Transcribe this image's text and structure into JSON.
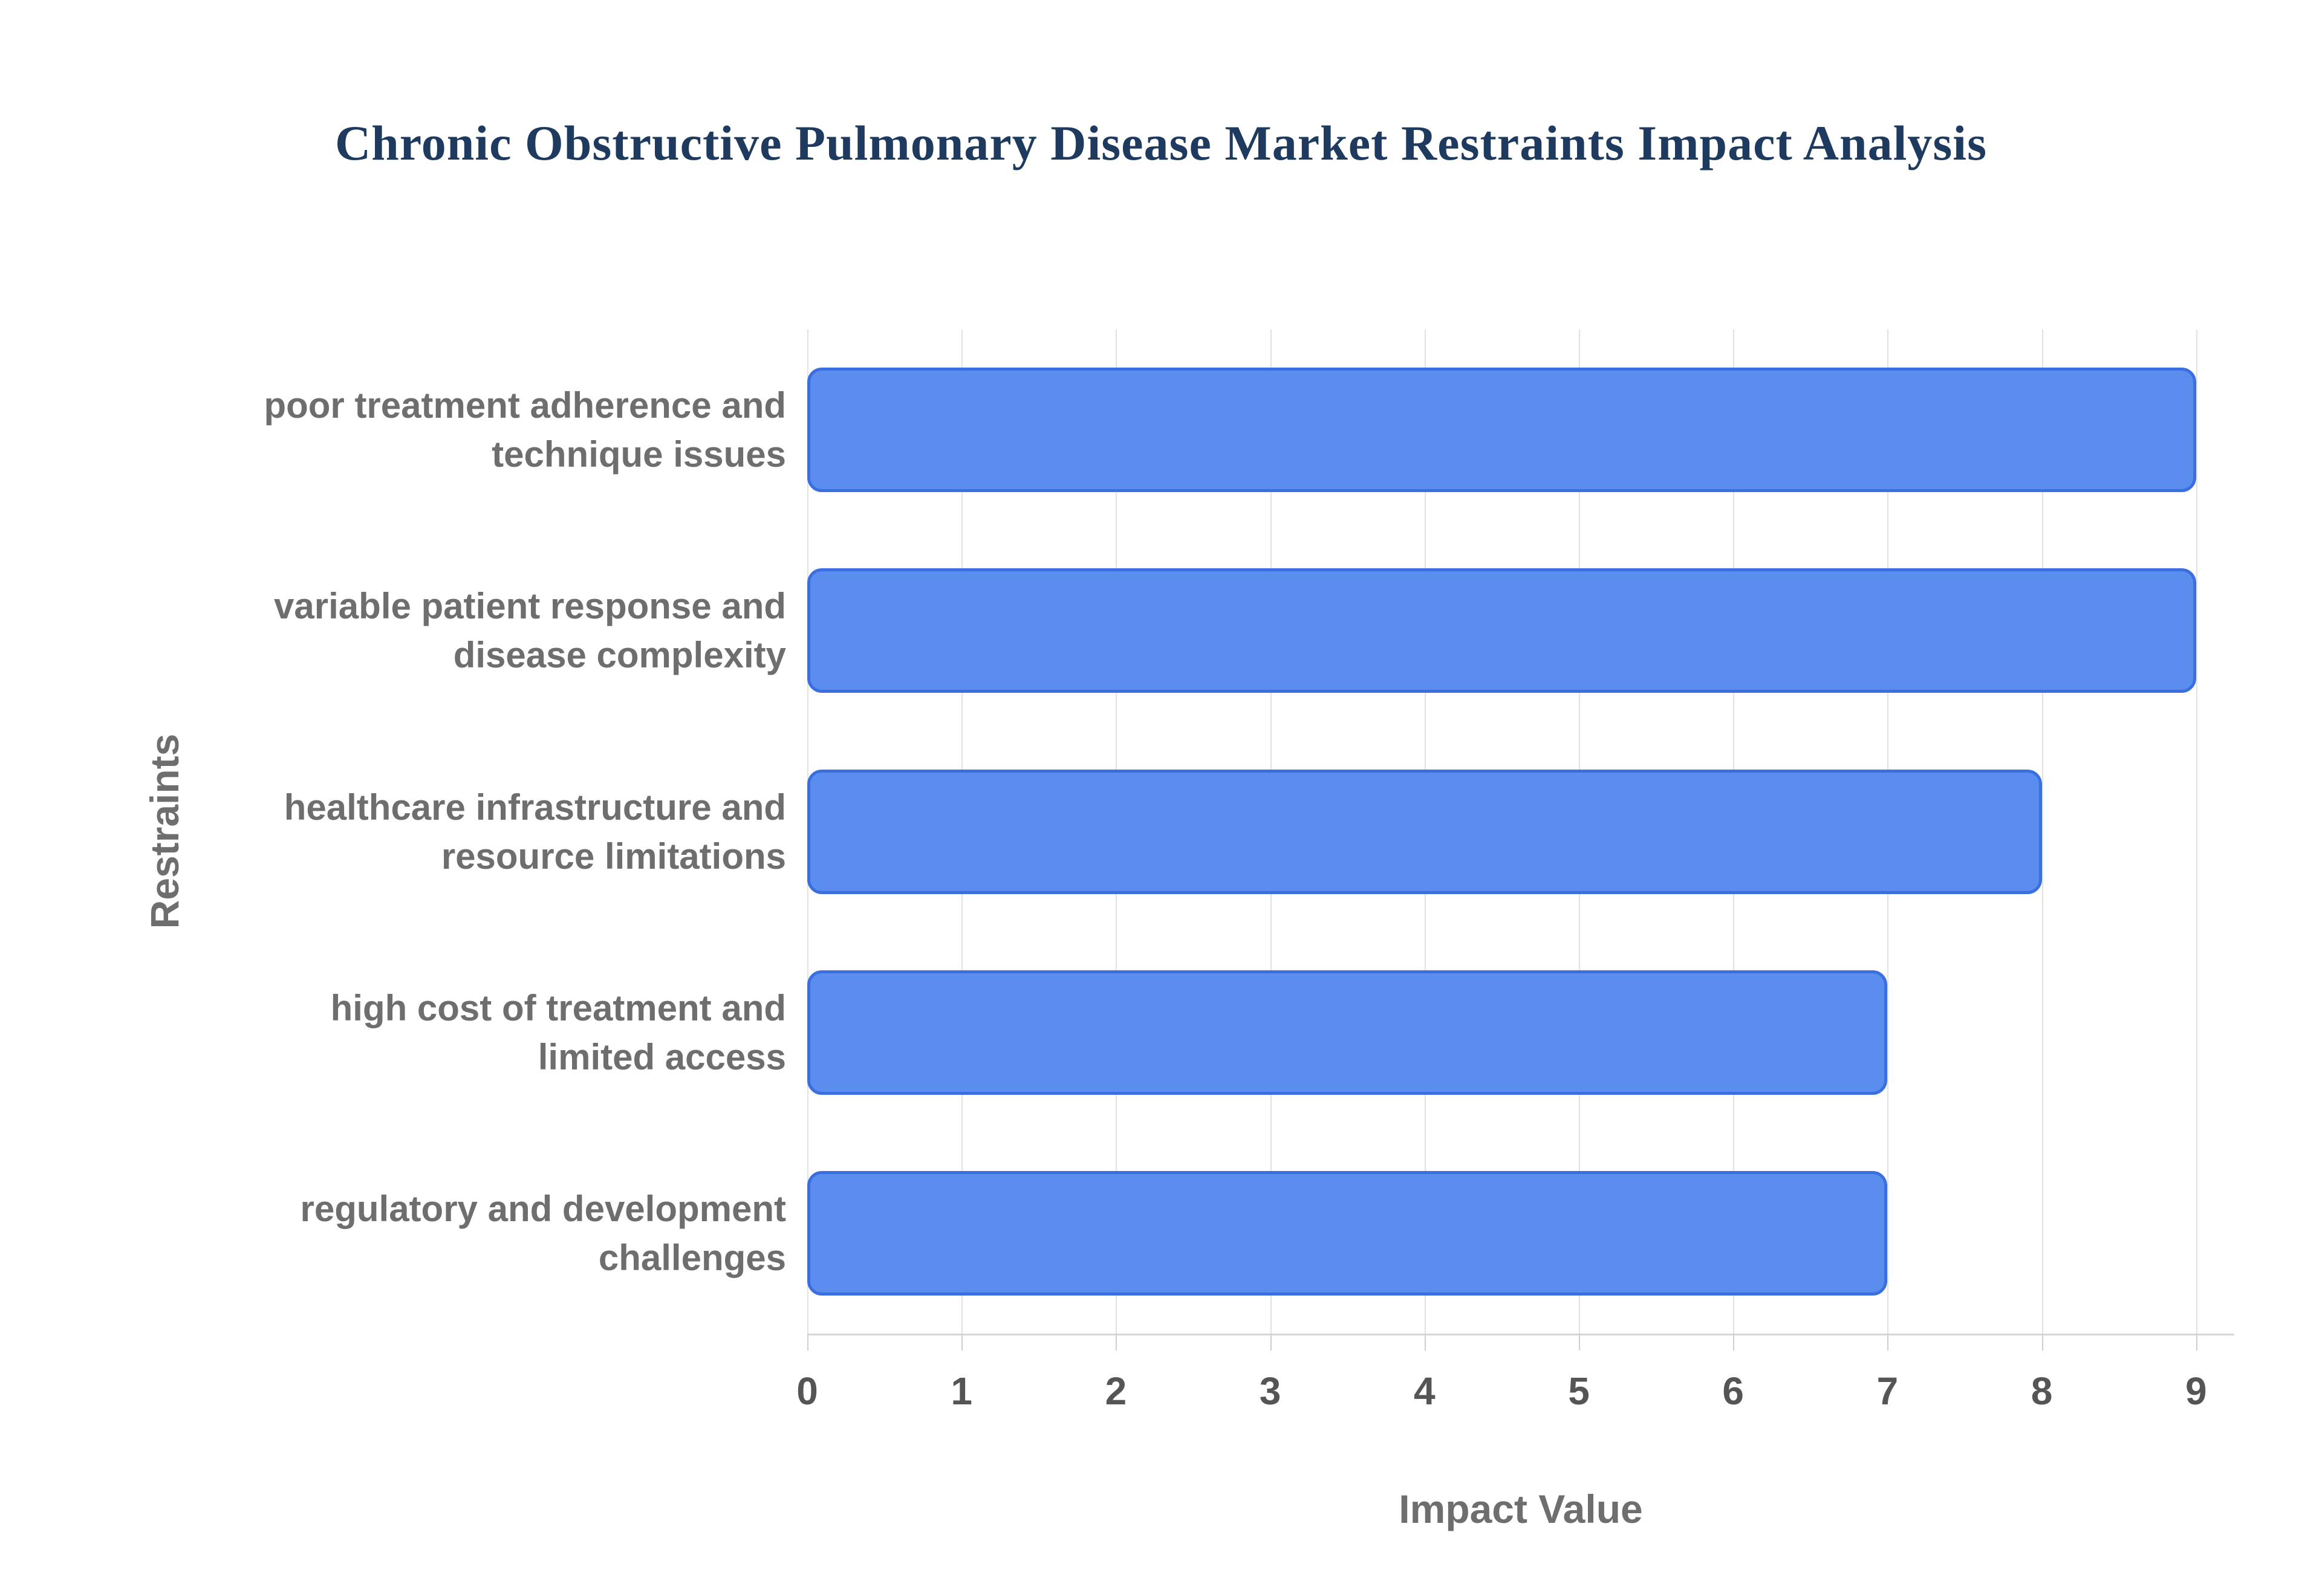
{
  "page": {
    "background": "#ffffff"
  },
  "chart_data": {
    "type": "bar",
    "orientation": "horizontal",
    "title": "Chronic Obstructive Pulmonary Disease Market Restraints Impact Analysis",
    "xlabel": "Impact Value",
    "ylabel": "Restraints",
    "categories": [
      "poor treatment adherence and technique issues",
      "variable patient response and disease complexity",
      "healthcare infrastructure and resource limitations",
      "high cost of treatment and limited access",
      "regulatory and development challenges"
    ],
    "category_lines": [
      [
        "poor treatment adherence and",
        "technique issues"
      ],
      [
        "variable patient response and",
        "disease complexity"
      ],
      [
        "healthcare infrastructure and",
        "resource limitations"
      ],
      [
        "high cost of treatment and",
        "limited access"
      ],
      [
        "regulatory and development",
        "challenges"
      ]
    ],
    "values": [
      9,
      9,
      8,
      7,
      7
    ],
    "xlim": [
      0,
      9
    ],
    "xticks": [
      0,
      1,
      2,
      3,
      4,
      5,
      6,
      7,
      8,
      9
    ],
    "grid": "vertical",
    "legend": "none",
    "colors": {
      "bar_fill": "#5a8dee",
      "bar_border": "#3b6fe0",
      "title_text": "#1e3a5f",
      "label_text": "#6e6e6e",
      "tick_text": "#555555",
      "gridline": "#e2e2e2",
      "axis_line": "#d6d6d6"
    }
  }
}
